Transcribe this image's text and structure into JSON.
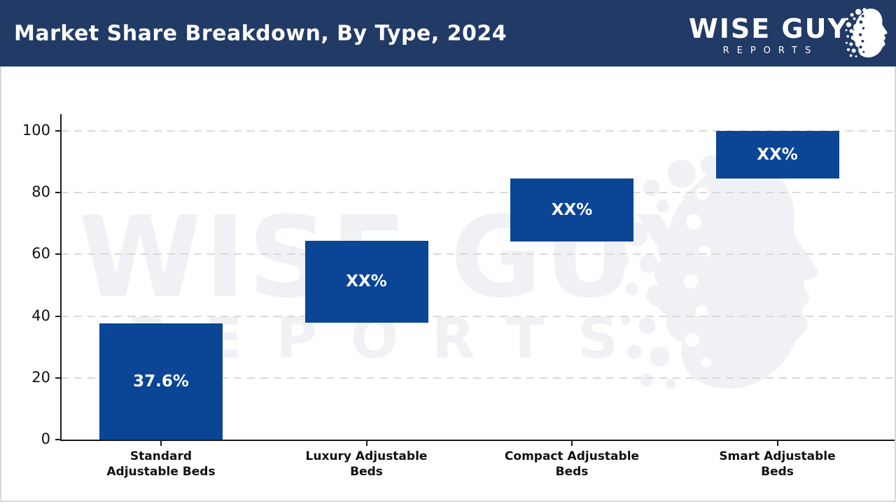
{
  "header": {
    "title": "Market Share Breakdown, By Type, 2024",
    "bg_color": "#213a66",
    "logo": {
      "line1": "WISE GUY",
      "line2": "REPORTS"
    }
  },
  "watermark": {
    "line1": "WISE GUY",
    "line2": "REPORTS"
  },
  "chart_data": {
    "type": "bar",
    "subtype": "waterfall-floating-bars",
    "title": "Market Share Breakdown, By Type, 2024",
    "categories": [
      "Standard\nAdjustable Beds",
      "Luxury Adjustable\nBeds",
      "Compact Adjustable\nBeds",
      "Smart Adjustable\nBeds"
    ],
    "segments": [
      {
        "start": 0,
        "end": 37.6,
        "label": "37.6%"
      },
      {
        "start": 37.9,
        "end": 64.4,
        "label": "XX%"
      },
      {
        "start": 64.2,
        "end": 84.6,
        "label": "XX%"
      },
      {
        "start": 84.6,
        "end": 100,
        "label": "XX%"
      }
    ],
    "segment_sizes_approx": [
      37.6,
      26.5,
      20.4,
      15.4
    ],
    "yticks": [
      0,
      20,
      40,
      60,
      80,
      100
    ],
    "ylim": [
      0,
      105.4
    ],
    "xlabel": "",
    "ylabel": "",
    "grid": "dashed-horizontal",
    "legend": "none",
    "bar_color": "#0a4596",
    "bar_label_color": "#ffffff",
    "grid_color": "#d9d9d9",
    "axis_color": "#1a1a1a"
  }
}
